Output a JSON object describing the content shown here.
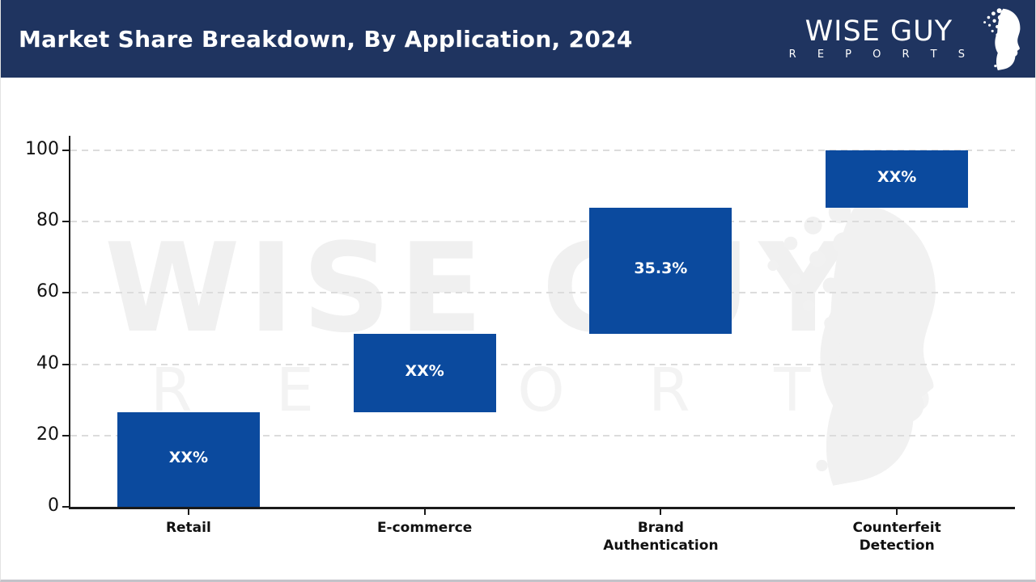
{
  "header": {
    "title": "Market Share Breakdown, By Application, 2024",
    "logo": {
      "line1": "WISE GUY",
      "line2": "R E P O R T S"
    }
  },
  "watermark": {
    "line1": "WISE GUY",
    "line2": "R E P O R T S"
  },
  "colors": {
    "header_bg": "#1f3460",
    "bar": "#0b4a9e",
    "bar_label": "#ffffff",
    "grid": "#dcdcdc",
    "axis": "#1a1a1a",
    "watermark": "#f0f0f0"
  },
  "chart_data": {
    "type": "bar",
    "subtype": "waterfall-floating-bars",
    "title": "Market Share Breakdown, By Application, 2024",
    "categories": [
      "Retail",
      "E-commerce",
      "Brand\nAuthentication",
      "Counterfeit\nDetection"
    ],
    "segments": [
      {
        "category": "Retail",
        "start": 0,
        "end": 26.5,
        "value_label": "XX%"
      },
      {
        "category": "E-commerce",
        "start": 26.5,
        "end": 48.5,
        "value_label": "XX%"
      },
      {
        "category": "Brand Authentication",
        "start": 48.5,
        "end": 83.8,
        "value_label": "35.3%"
      },
      {
        "category": "Counterfeit Detection",
        "start": 83.8,
        "end": 100,
        "value_label": "XX%"
      }
    ],
    "ylim": [
      0,
      100
    ],
    "yticks": [
      0,
      20,
      40,
      60,
      80,
      100
    ],
    "xlabel": "",
    "ylabel": "",
    "grid": "horizontal dashed",
    "legend": "none",
    "bar_color": "#0b4a9e",
    "bar_label_color": "#ffffff"
  }
}
